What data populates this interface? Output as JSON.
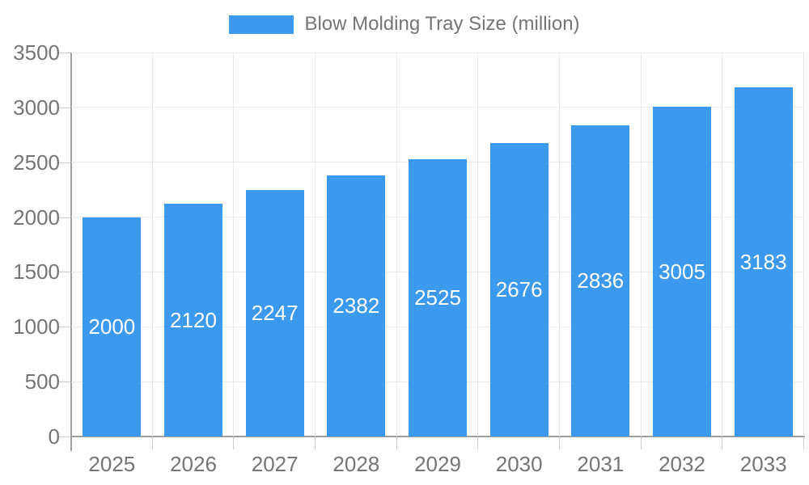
{
  "chart": {
    "legend_label": "Blow Molding Tray Size (million)"
  },
  "chart_data": {
    "type": "bar",
    "title": "",
    "categories": [
      "2025",
      "2026",
      "2027",
      "2028",
      "2029",
      "2030",
      "2031",
      "2032",
      "2033"
    ],
    "series": [
      {
        "name": "Blow Molding Tray Size (million)",
        "values": [
          2000,
          2120,
          2247,
          2382,
          2525,
          2676,
          2836,
          3005,
          3183
        ]
      }
    ],
    "value_labels": [
      "2000",
      "2120",
      "2247",
      "2382",
      "2525",
      "2676",
      "2836",
      "3005",
      "3183"
    ],
    "xlabel": "",
    "ylabel": "",
    "ylim": [
      0,
      3500
    ],
    "yticks": [
      0,
      500,
      1000,
      1500,
      2000,
      2500,
      3000,
      3500
    ],
    "grid": true,
    "legend_position": "top",
    "bar_color": "#3B9AEE",
    "value_label_color": "#FFFFFF",
    "axis_text_color": "#757575",
    "gridline_color": "#E8E8E8",
    "axis_line_color": "#9E9E9E",
    "tick_color": "#CCCCCC"
  }
}
